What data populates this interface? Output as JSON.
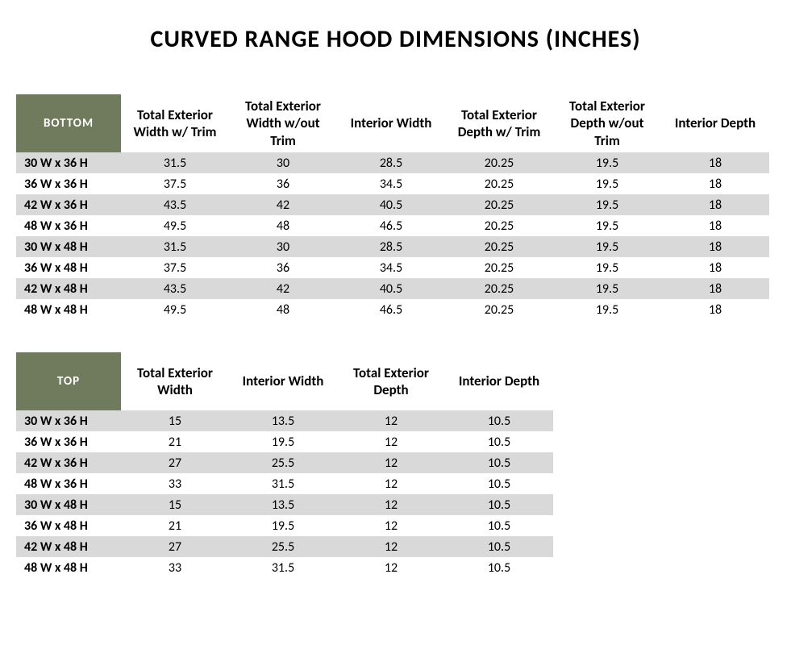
{
  "title": "CURVED RANGE HOOD DIMENSIONS (INCHES)",
  "colors": {
    "section_header_bg": "#707a5d",
    "section_header_fg": "#ffffff",
    "row_odd_bg": "#d9d9d9",
    "row_even_bg": "#ffffff",
    "text": "#000000",
    "page_bg": "#ffffff"
  },
  "typography": {
    "title_fontsize": 30,
    "header_fontsize": 17,
    "cell_fontsize": 16,
    "font_family": "Calibri"
  },
  "bottom_table": {
    "section_label": "BOTTOM",
    "columns": [
      "Total Exterior Width w/ Trim",
      "Total Exterior Width w/out Trim",
      "Interior Width",
      "Total Exterior Depth w/ Trim",
      "Total Exterior Depth w/out Trim",
      "Interior Depth"
    ],
    "row_labels": [
      "30 W x 36 H",
      "36 W x 36 H",
      "42 W x 36 H",
      "48 W x 36 H",
      "30 W x 48 H",
      "36 W x 48 H",
      "42 W x 48 H",
      "48 W x 48 H"
    ],
    "rows": [
      [
        "31.5",
        "30",
        "28.5",
        "20.25",
        "19.5",
        "18"
      ],
      [
        "37.5",
        "36",
        "34.5",
        "20.25",
        "19.5",
        "18"
      ],
      [
        "43.5",
        "42",
        "40.5",
        "20.25",
        "19.5",
        "18"
      ],
      [
        "49.5",
        "48",
        "46.5",
        "20.25",
        "19.5",
        "18"
      ],
      [
        "31.5",
        "30",
        "28.5",
        "20.25",
        "19.5",
        "18"
      ],
      [
        "37.5",
        "36",
        "34.5",
        "20.25",
        "19.5",
        "18"
      ],
      [
        "43.5",
        "42",
        "40.5",
        "20.25",
        "19.5",
        "18"
      ],
      [
        "49.5",
        "48",
        "46.5",
        "20.25",
        "19.5",
        "18"
      ]
    ]
  },
  "top_table": {
    "section_label": "TOP",
    "columns": [
      "Total Exterior Width",
      "Interior Width",
      "Total Exterior Depth",
      "Interior Depth"
    ],
    "row_labels": [
      "30 W x 36 H",
      "36 W x 36 H",
      "42 W x 36 H",
      "48 W x 36 H",
      "30 W x 48 H",
      "36 W x 48 H",
      "42 W x 48 H",
      "48 W x 48 H"
    ],
    "rows": [
      [
        "15",
        "13.5",
        "12",
        "10.5"
      ],
      [
        "21",
        "19.5",
        "12",
        "10.5"
      ],
      [
        "27",
        "25.5",
        "12",
        "10.5"
      ],
      [
        "33",
        "31.5",
        "12",
        "10.5"
      ],
      [
        "15",
        "13.5",
        "12",
        "10.5"
      ],
      [
        "21",
        "19.5",
        "12",
        "10.5"
      ],
      [
        "27",
        "25.5",
        "12",
        "10.5"
      ],
      [
        "33",
        "31.5",
        "12",
        "10.5"
      ]
    ]
  }
}
